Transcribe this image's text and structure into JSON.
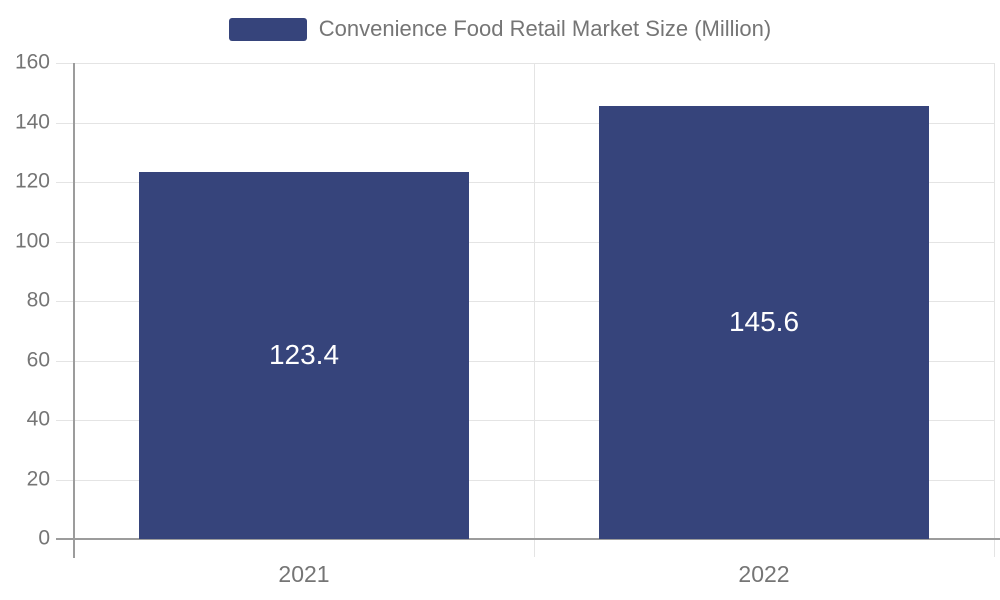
{
  "legend": {
    "label": "Convenience Food Retail Market Size (Million)"
  },
  "chart_data": {
    "type": "bar",
    "title": "Convenience Food Retail Market Size (Million)",
    "categories": [
      "2021",
      "2022"
    ],
    "values": [
      123.4,
      145.6
    ],
    "value_labels": [
      "123.4",
      "145.6"
    ],
    "series": [
      {
        "name": "Convenience Food Retail Market Size (Million)",
        "values": [
          123.4,
          145.6
        ]
      }
    ],
    "ylim": [
      0,
      160
    ],
    "yticks": [
      0,
      20,
      40,
      60,
      80,
      100,
      120,
      140,
      160
    ],
    "xlabel": "",
    "ylabel": "",
    "grid": true,
    "legend_position": "top-center",
    "bar_color": "#36447b",
    "value_label_color": "#ffffff",
    "axis_text_color": "#757575",
    "axis_line_color": "#9c9c9c",
    "grid_color": "#e4e4e4"
  }
}
